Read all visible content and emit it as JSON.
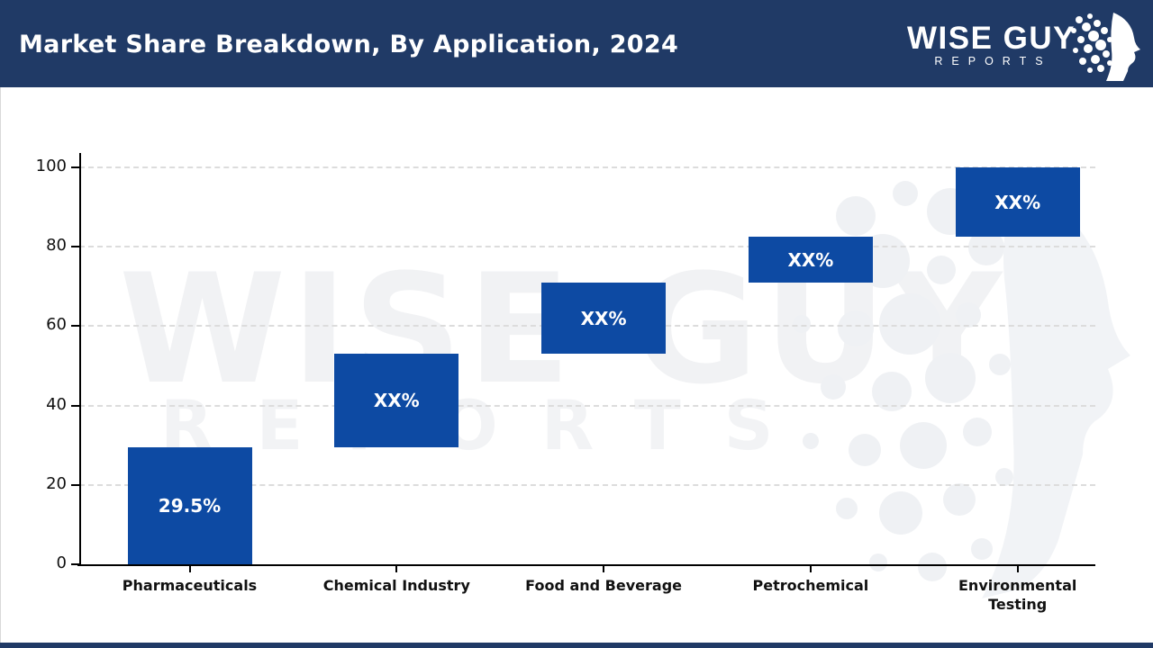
{
  "header": {
    "title": "Market Share Breakdown, By Application, 2024",
    "brand": {
      "line1": "WISE GUY",
      "line2": "REPORTS"
    }
  },
  "watermark": {
    "line1": "WISE GUY",
    "line2": "REPORTS"
  },
  "chart_data": {
    "type": "bar",
    "subtype": "waterfall-floating-bars",
    "title": "Market Share Breakdown, By Application, 2024",
    "categories": [
      "Pharmaceuticals",
      "Chemical Industry",
      "Food and Beverage",
      "Petrochemical",
      "Environmental Testing"
    ],
    "tick_labels": [
      "Pharmaceuticals",
      "Chemical Industry",
      "Food and Beverage",
      "Petrochemical",
      "Environmental\nTesting"
    ],
    "segments": [
      {
        "category": "Pharmaceuticals",
        "start": 0,
        "end": 29.5,
        "label": "29.5%"
      },
      {
        "category": "Chemical Industry",
        "start": 29.5,
        "end": 53,
        "label": "XX%"
      },
      {
        "category": "Food and Beverage",
        "start": 53,
        "end": 71,
        "label": "XX%"
      },
      {
        "category": "Petrochemical",
        "start": 71,
        "end": 82.5,
        "label": "XX%"
      },
      {
        "category": "Environmental Testing",
        "start": 82.5,
        "end": 100,
        "label": "XX%"
      }
    ],
    "y_ticks": [
      0,
      20,
      40,
      60,
      80,
      100
    ],
    "ylim": [
      0,
      100
    ],
    "xlabel": "",
    "ylabel": "",
    "grid": "horizontal dashed",
    "legend": "none"
  },
  "colors": {
    "header_bg": "#203a66",
    "footer_bg": "#203a66",
    "bar": "#0d4aa3",
    "grid": "#dcdcdc",
    "axis": "#000000",
    "bar_label": "#ffffff",
    "watermark": "#f1f2f4"
  }
}
